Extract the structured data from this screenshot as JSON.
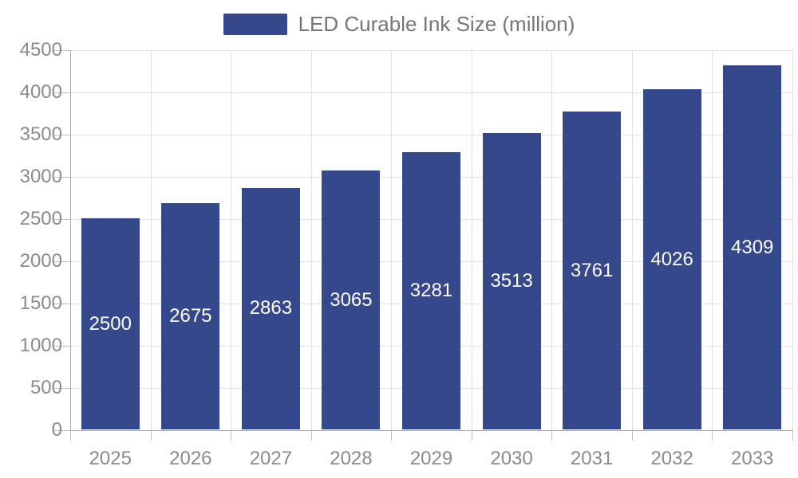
{
  "chart_data": {
    "type": "bar",
    "title": "LED Curable Ink Size (million)",
    "legend": {
      "label": "LED Curable Ink Size (million)",
      "position": "top"
    },
    "categories": [
      "2025",
      "2026",
      "2027",
      "2028",
      "2029",
      "2030",
      "2031",
      "2032",
      "2033"
    ],
    "values": [
      2500,
      2675,
      2863,
      3065,
      3281,
      3513,
      3761,
      4026,
      4309
    ],
    "xlabel": "",
    "ylabel": "",
    "ylim": [
      0,
      4500
    ],
    "ytick_step": 500,
    "yticks": [
      0,
      500,
      1000,
      1500,
      2000,
      2500,
      3000,
      3500,
      4000,
      4500
    ],
    "grid": true,
    "value_labels_inside_bars": true,
    "colors": {
      "bar": "#35488c",
      "bar_label": "#ffffff",
      "axis_label": "#8b8b8b",
      "legend_text": "#74767a",
      "gridline": "#e0e0e0",
      "axis_line": "#aaaaaa",
      "tick": "#c0c0c0",
      "background": "#ffffff"
    }
  }
}
